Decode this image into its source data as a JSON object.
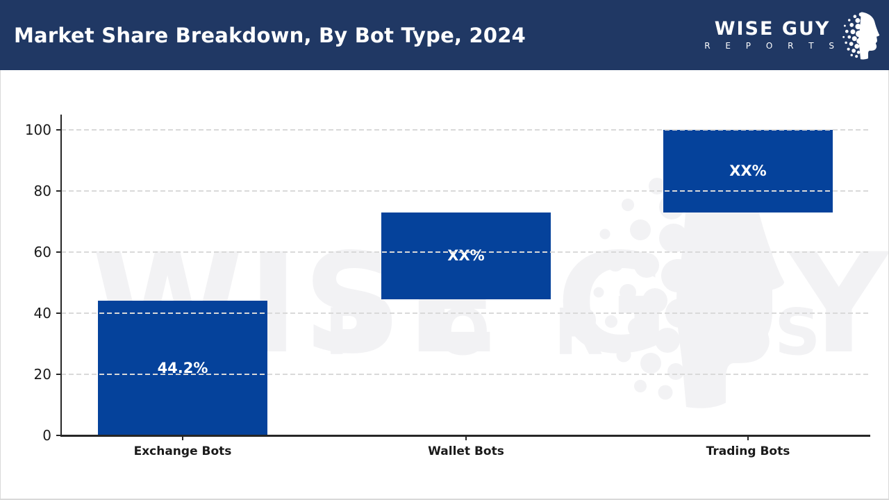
{
  "header": {
    "title": "Market Share Breakdown, By Bot Type, 2024",
    "bg_color": "#203864",
    "logo": {
      "line1": "WISE GUY",
      "line2": "R E P O R T S"
    }
  },
  "watermark": {
    "line1": "WISE GUY",
    "line2": "R E P O R T S"
  },
  "chart_data": {
    "type": "bar",
    "variant": "waterfall",
    "title": "Market Share Breakdown, By Bot Type, 2024",
    "categories": [
      "Exchange Bots",
      "Wallet Bots",
      "Trading Bots"
    ],
    "segments": [
      {
        "category": "Exchange Bots",
        "start": 0,
        "end": 44.2,
        "label": "44.2%"
      },
      {
        "category": "Wallet Bots",
        "start": 44.5,
        "end": 73,
        "label": "XX%"
      },
      {
        "category": "Trading Bots",
        "start": 73,
        "end": 100,
        "label": "XX%"
      }
    ],
    "xlabel": "",
    "ylabel": "",
    "ylim": [
      0,
      105
    ],
    "yticks": [
      0,
      20,
      40,
      60,
      80,
      100
    ],
    "grid": "horizontal dashed, drawn over bars",
    "legend": "none",
    "bar_color": "#05429B",
    "bar_label_color": "#ffffff",
    "axis_color": "#262626",
    "grid_color": "#d9d9d9",
    "tick_label_color": "#1a1a1a"
  }
}
